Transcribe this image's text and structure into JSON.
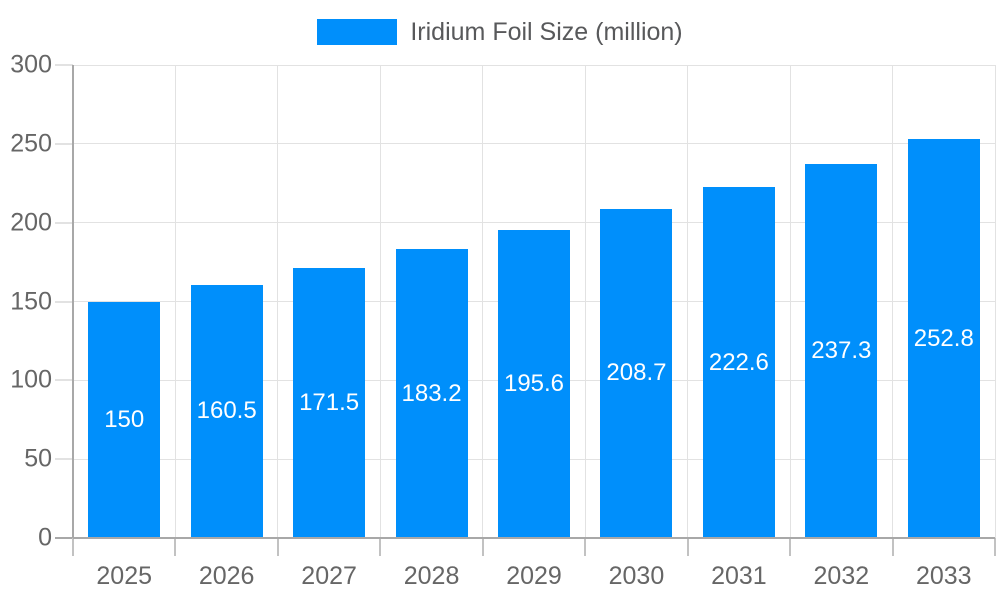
{
  "chart_data": {
    "type": "bar",
    "title": "",
    "legend": "Iridium Foil Size (million)",
    "legend_position": "top",
    "categories": [
      "2025",
      "2026",
      "2027",
      "2028",
      "2029",
      "2030",
      "2031",
      "2032",
      "2033"
    ],
    "values": [
      150,
      160.5,
      171.5,
      183.2,
      195.6,
      208.7,
      222.6,
      237.3,
      252.8
    ],
    "value_labels": [
      "150",
      "160.5",
      "171.5",
      "183.2",
      "195.6",
      "208.7",
      "222.6",
      "237.3",
      "252.8"
    ],
    "xlabel": "",
    "ylabel": "",
    "ylim": [
      0,
      300
    ],
    "yticks": [
      0,
      50,
      100,
      150,
      200,
      250,
      300
    ],
    "grid": true,
    "colors": {
      "bar": "#008FFB",
      "bar_label_text": "#FFFFFF",
      "axis_text": "#666666",
      "legend_text": "#58595B",
      "gridline": "#E2E2E2",
      "axis_line": "#A8A8A8",
      "background": "#FFFFFF"
    }
  }
}
